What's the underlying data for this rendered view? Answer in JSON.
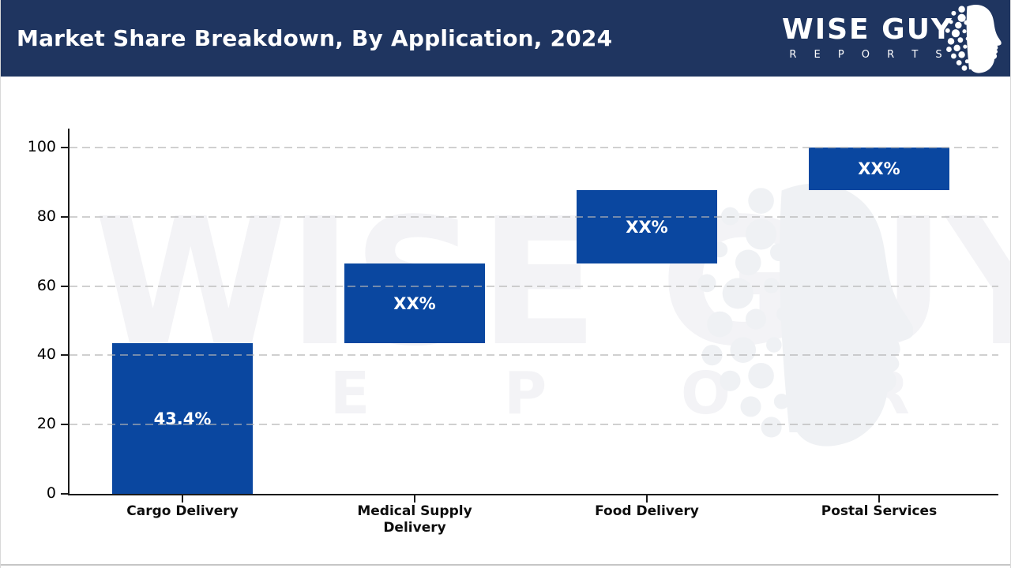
{
  "header": {
    "title": "Market Share Breakdown, By Application, 2024",
    "logo": {
      "line1": "WISE GUY",
      "line2": "R E P O R T S"
    }
  },
  "watermark": {
    "line1": "WISE GUY",
    "line2": "R E P O R T S"
  },
  "chart_data": {
    "type": "bar",
    "subtype": "waterfall",
    "title": "Market Share Breakdown, By Application, 2024",
    "categories": [
      "Cargo Delivery",
      "Medical Supply Delivery",
      "Food Delivery",
      "Postal Services"
    ],
    "segments": [
      {
        "category": "Cargo Delivery",
        "start": 0,
        "end": 43.4,
        "value_label": "43.4%"
      },
      {
        "category": "Medical Supply Delivery",
        "start": 43.4,
        "end": 66.6,
        "value_label": "XX%"
      },
      {
        "category": "Food Delivery",
        "start": 66.6,
        "end": 87.6,
        "value_label": "XX%"
      },
      {
        "category": "Postal Services",
        "start": 87.6,
        "end": 100,
        "value_label": "XX%"
      }
    ],
    "ylim": [
      0,
      100
    ],
    "yticks": [
      0,
      20,
      40,
      60,
      80,
      100
    ],
    "grid": "horizontal-dashed",
    "legend": "none",
    "colors": {
      "bar": "#0A47A0",
      "value_label": "#FFFFFF",
      "grid": "#D2D2D2",
      "axis": "#1A1A1A",
      "header_bg": "#1F3560",
      "watermark": "#F3F3F6"
    }
  }
}
